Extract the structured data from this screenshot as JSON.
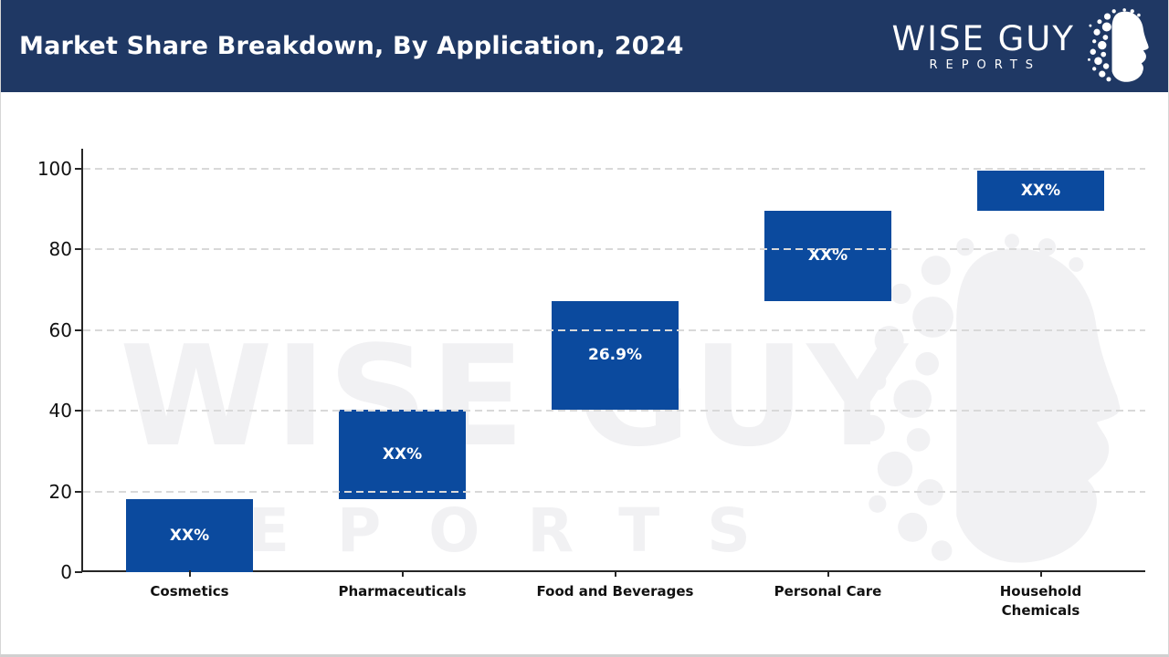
{
  "header": {
    "title": "Market Share Breakdown, By Application, 2024",
    "bg_color": "#1f3864",
    "logo": {
      "line1": "WISE GUY",
      "line2": "REPORTS"
    }
  },
  "watermark": {
    "line1": "WISE GUY",
    "line2": "REPORTS"
  },
  "chart_data": {
    "type": "bar",
    "subtype": "floating-waterfall",
    "title": "Market Share Breakdown, By Application, 2024",
    "categories": [
      "Cosmetics",
      "Pharmaceuticals",
      "Food and Beverages",
      "Personal Care",
      "Household Chemicals"
    ],
    "bars": [
      {
        "category": "Cosmetics",
        "tick_label": "Cosmetics",
        "start": 0,
        "end": 18,
        "label": "XX%"
      },
      {
        "category": "Pharmaceuticals",
        "tick_label": "Pharmaceuticals",
        "start": 18,
        "end": 40.3,
        "label": "XX%"
      },
      {
        "category": "Food and Beverages",
        "tick_label": "Food and Beverages",
        "start": 40.3,
        "end": 67.2,
        "label": "26.9%"
      },
      {
        "category": "Personal Care",
        "tick_label": "Personal Care",
        "start": 67.2,
        "end": 89.7,
        "label": "XX%"
      },
      {
        "category": "Household Chemicals",
        "tick_label": "Household\nChemicals",
        "start": 89.7,
        "end": 99.5,
        "label": "XX%"
      }
    ],
    "y_ticks": [
      0,
      20,
      40,
      60,
      80,
      100
    ],
    "ylim": [
      0,
      105
    ],
    "xlabel": "",
    "ylabel": "",
    "grid": "horizontal dashed, drawn over bars",
    "legend": "none",
    "bar_color": "#0b4a9e",
    "bar_label_color": "#ffffff",
    "axis_color": "#262626",
    "gridline_color": "#d9d9d9"
  }
}
